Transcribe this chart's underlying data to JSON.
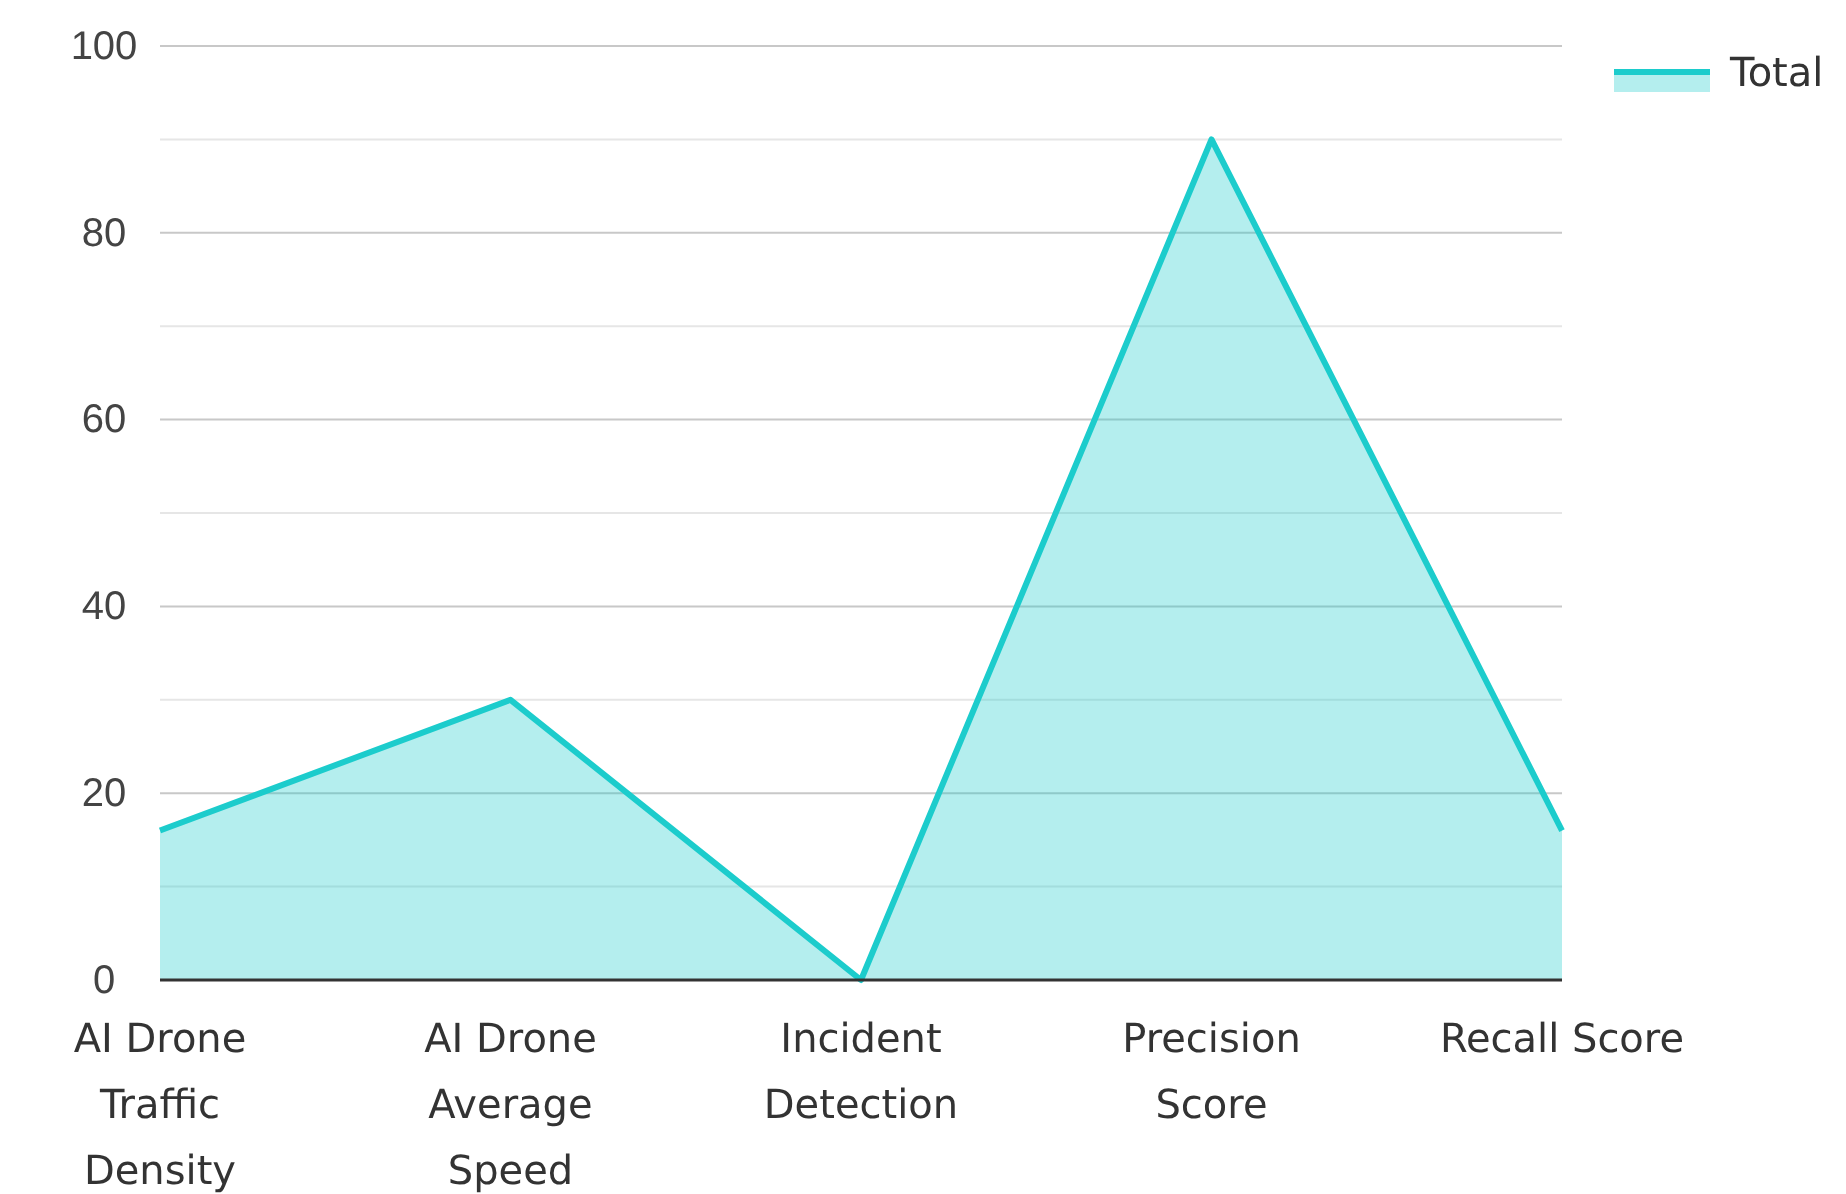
{
  "chart_data": {
    "type": "area",
    "categories": [
      "AI Drone Traffic Density",
      "AI Drone Average Speed",
      "Incident Detection",
      "Precision Score",
      "Recall Score"
    ],
    "series": [
      {
        "name": "Total",
        "color": "#1ccccc",
        "values": [
          16,
          30,
          0,
          90,
          16
        ]
      }
    ],
    "ylim": [
      0,
      100
    ],
    "yticks": [
      0,
      {
        "value": 10,
        "label": null
      },
      20,
      {
        "value": 30,
        "label": null
      },
      40,
      {
        "value": 50,
        "label": null
      },
      60,
      {
        "value": 70,
        "label": null
      },
      80,
      {
        "value": 90,
        "label": null
      },
      100
    ],
    "grid": "y",
    "legend": "top right"
  }
}
